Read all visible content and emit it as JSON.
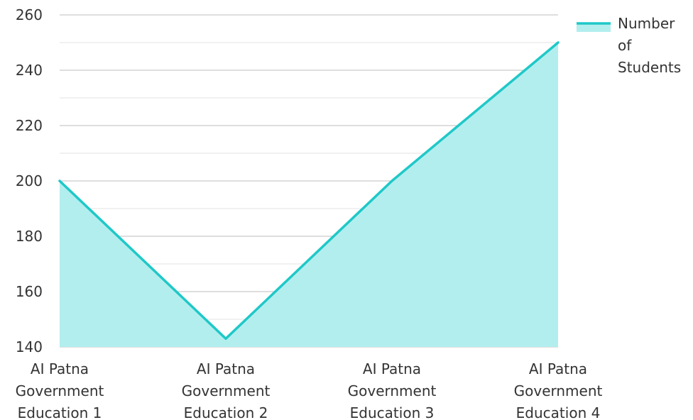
{
  "chart_data": {
    "type": "area",
    "categories": [
      [
        "AI Patna",
        "Government",
        "Education 1"
      ],
      [
        "AI Patna",
        "Government",
        "Education 2"
      ],
      [
        "AI Patna",
        "Government",
        "Education 3"
      ],
      [
        "AI Patna",
        "Government",
        "Education 4"
      ]
    ],
    "series": [
      {
        "name": "Number of Students",
        "values": [
          200,
          143,
          200,
          250
        ]
      }
    ],
    "legend": {
      "position": "top-right",
      "label_lines": [
        "Number",
        "of",
        "Students"
      ]
    },
    "ylim": [
      140,
      260
    ],
    "yticks": [
      "140",
      "160",
      "180",
      "200",
      "220",
      "240",
      "260"
    ],
    "grid": true,
    "colors": {
      "line": "#1fc8c8",
      "fill": "#b3eeee",
      "grid_major": "#bdbdbd",
      "grid_minor": "#e3e3e3"
    }
  }
}
